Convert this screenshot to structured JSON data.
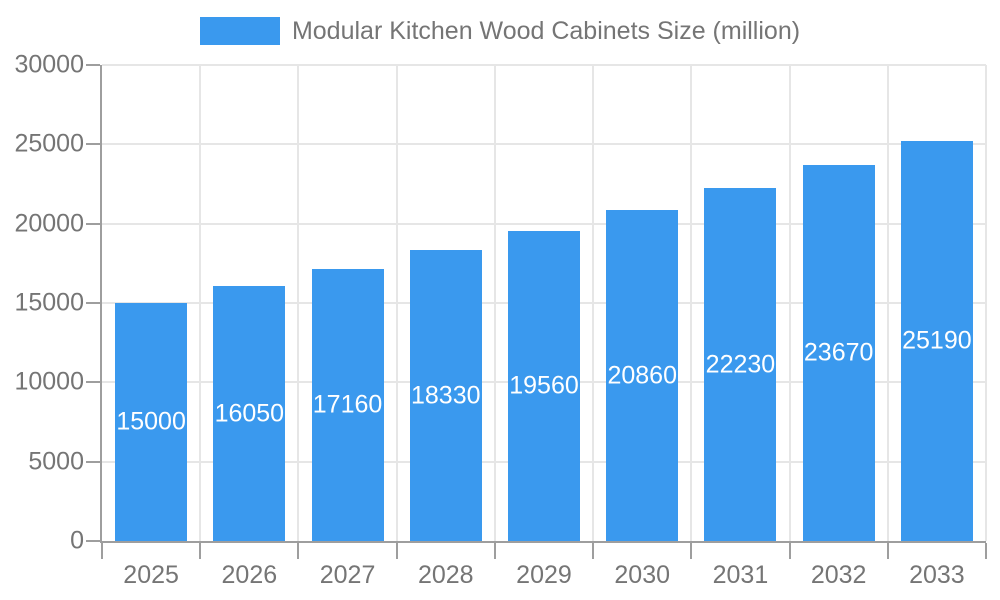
{
  "chart_data": {
    "type": "bar",
    "title": "Modular Kitchen Wood Cabinets Size (million)",
    "categories": [
      "2025",
      "2026",
      "2027",
      "2028",
      "2029",
      "2030",
      "2031",
      "2032",
      "2033"
    ],
    "values": [
      15000,
      16050,
      17160,
      18330,
      19560,
      20860,
      22230,
      23670,
      25190
    ],
    "yticks": [
      0,
      5000,
      10000,
      15000,
      20000,
      25000,
      30000
    ],
    "ylim": [
      0,
      30000
    ],
    "xlabel": "",
    "ylabel": "",
    "legend_position": "top",
    "grid": true,
    "bar_labels_visible": true,
    "colors": {
      "bar": "#3A99EE",
      "bar_label": "#FFFFFF",
      "axis_text": "#757575",
      "grid_line": "#E6E6E6",
      "axis_line": "#9E9E9E",
      "background": "#FFFFFF"
    }
  }
}
